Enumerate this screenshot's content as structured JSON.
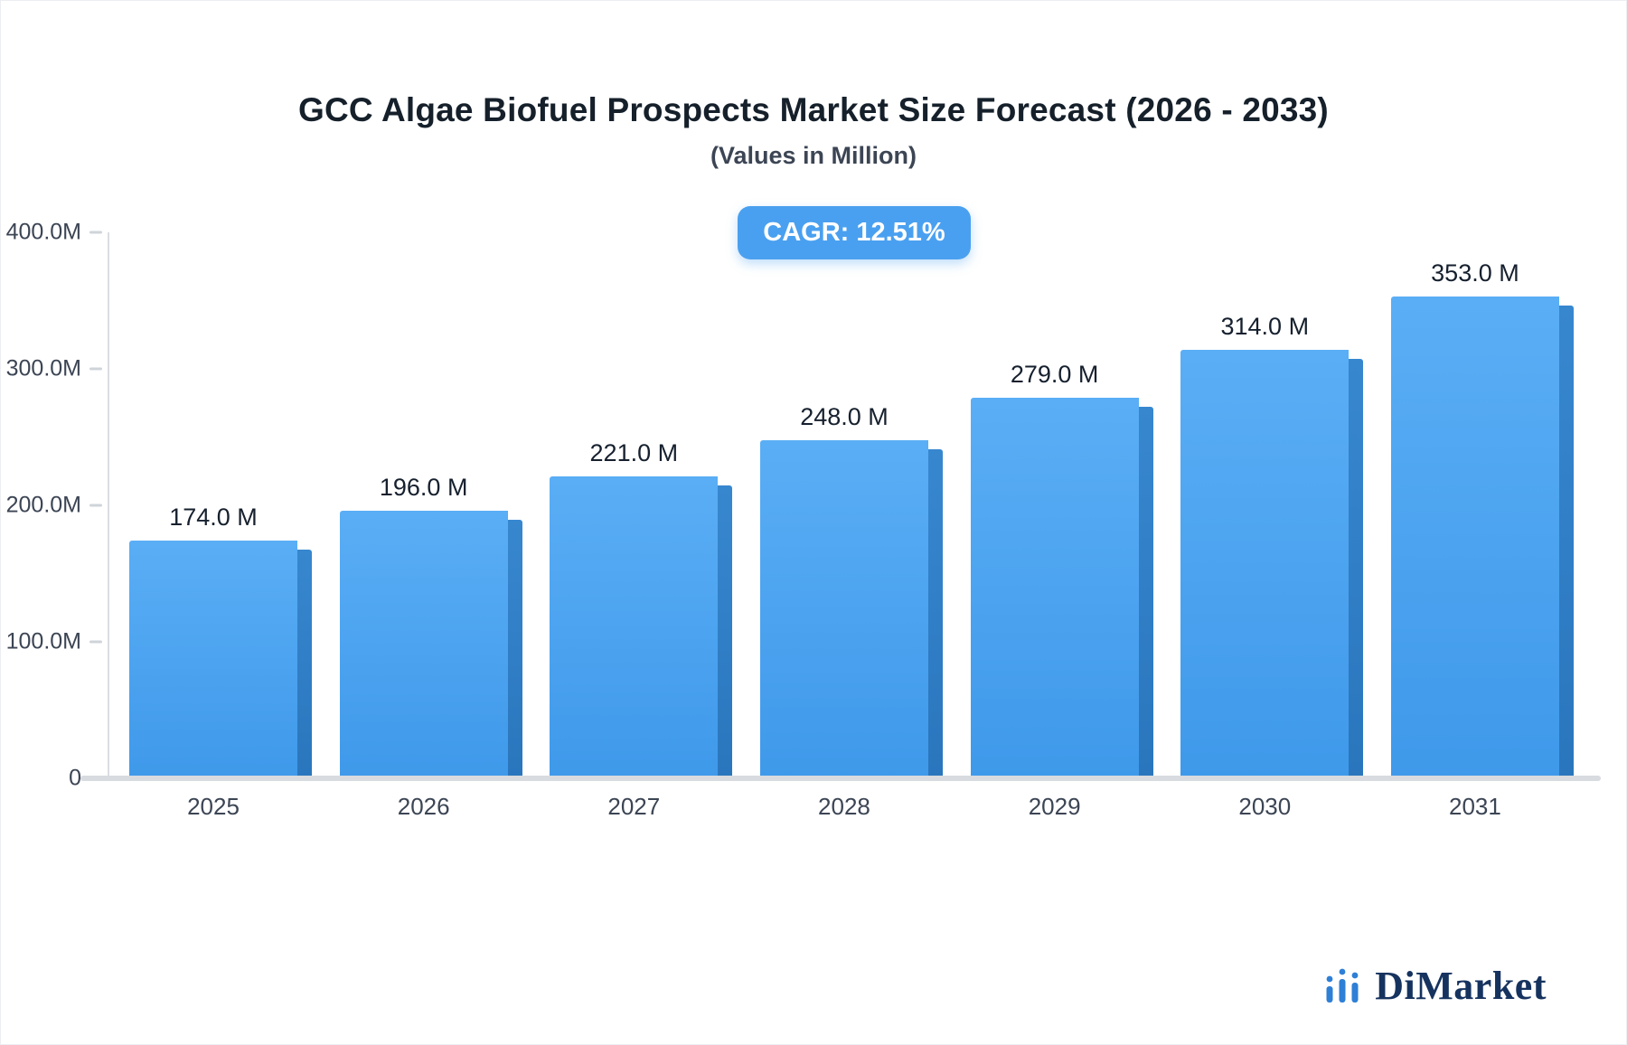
{
  "chart": {
    "title": "GCC Algae Biofuel Prospects Market Size Forecast (2026 - 2033)",
    "subtitle": "(Values in Million)",
    "cagr_label": "CAGR: 12.51%"
  },
  "chart_data": {
    "type": "bar",
    "categories": [
      "2025",
      "2026",
      "2027",
      "2028",
      "2029",
      "2030",
      "2031"
    ],
    "values": [
      174.0,
      196.0,
      221.0,
      248.0,
      279.0,
      314.0,
      353.0
    ],
    "value_labels": [
      "174.0 M",
      "196.0 M",
      "221.0 M",
      "248.0 M",
      "279.0 M",
      "314.0 M",
      "353.0 M"
    ],
    "title": "GCC Algae Biofuel Prospects Market Size Forecast (2026 - 2033)",
    "subtitle": "(Values in Million)",
    "xlabel": "",
    "ylabel": "",
    "ylim": [
      0,
      400
    ],
    "yticks": [
      0,
      100,
      200,
      300,
      400
    ],
    "ytick_labels": [
      "0",
      "100.0M",
      "200.0M",
      "300.0M",
      "400.0M"
    ],
    "grid": false,
    "legend": "none",
    "bar_color": "#45a0ee",
    "bar_side_color": "#2e7fc9",
    "annotation": "CAGR: 12.51%"
  },
  "branding": {
    "logo_text": "DiMarket",
    "logo_text_color": "#16335f",
    "logo_icon_color": "#2e7fd6",
    "logo_icon": "bar-chart-icon"
  }
}
